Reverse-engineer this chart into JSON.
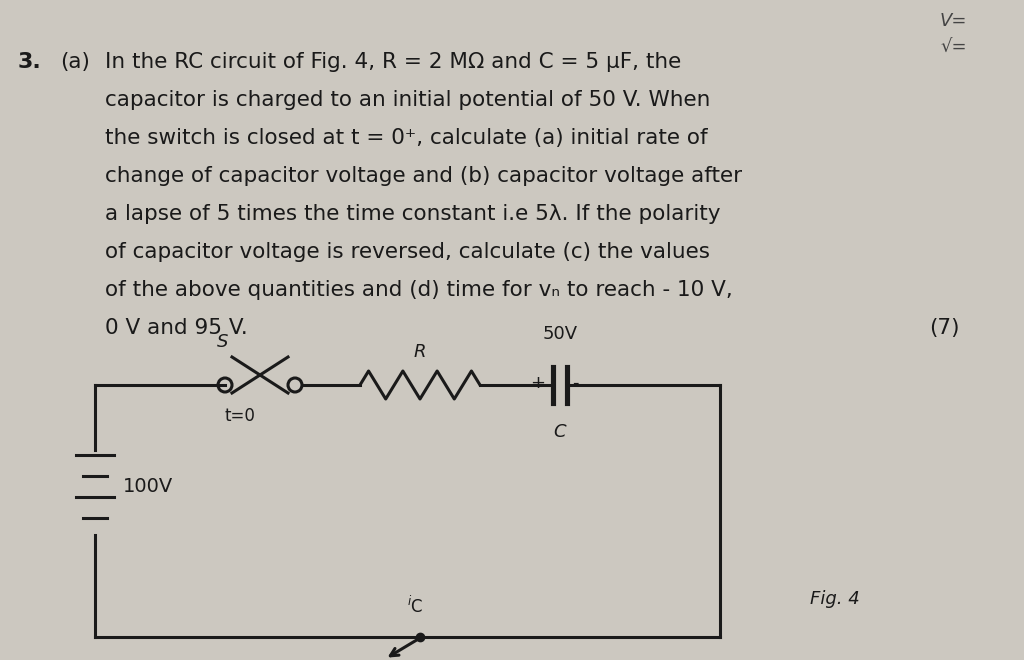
{
  "bg_color": "#ccc8c0",
  "text_color": "#1a1a1a",
  "problem_number": "3.",
  "part": "(a)",
  "problem_text_lines": [
    "In the RC circuit of Fig. 4, R = 2 MΩ and C = 5 μF, the",
    "capacitor is charged to an initial potential of 50 V. When",
    "the switch is closed at t = 0⁺, calculate (a) initial rate of",
    "change of capacitor voltage and (b) capacitor voltage after",
    "a lapse of 5 times the time constant i.e 5λ. If the polarity",
    "of capacitor voltage is reversed, calculate (c) the values",
    "of the above quantities and (d) time for vₙ to reach - 10 V,",
    "0 V and 95 V."
  ],
  "marks": "(7)",
  "fig_label": "Fig. 4",
  "corner_text": "V=",
  "corner_text2": "√=",
  "font_size_text": 15.5,
  "font_size_num": 16,
  "circuit": {
    "battery_voltage": "100V",
    "switch_label": "S",
    "switch_time": "t=0",
    "resistor_label": "R",
    "capacitor_label": "C",
    "capacitor_voltage": "50V",
    "current_label": "iC"
  }
}
